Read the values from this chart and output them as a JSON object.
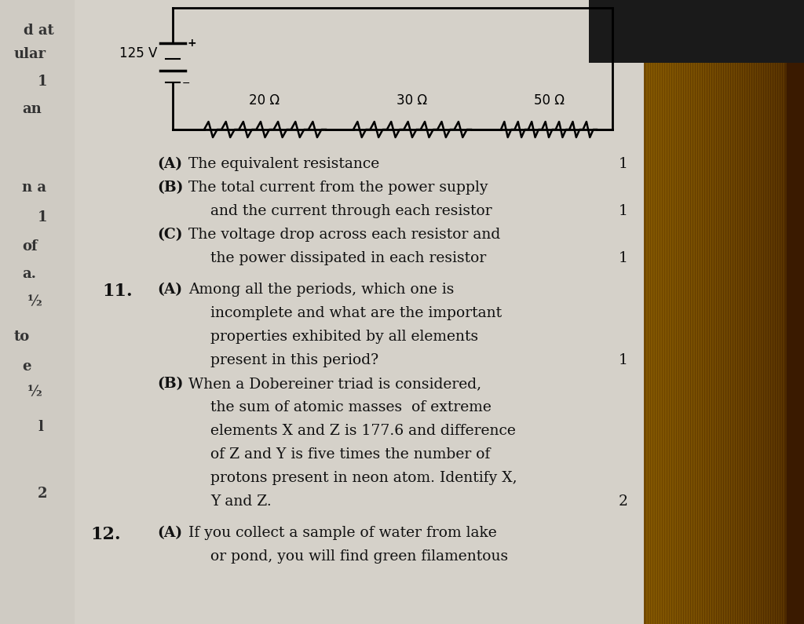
{
  "bg_page": "#d8d4cc",
  "bg_left_strip": "#c8c4bc",
  "text_color": "#111111",
  "circuit": {
    "voltage": "125 V",
    "resistors": [
      "20 Ω",
      "30 Ω",
      "50 Ω"
    ]
  },
  "lines_A": [
    {
      "prefix": "(A)",
      "text": "The equivalent resistance",
      "marks": "1",
      "indent": false
    },
    {
      "prefix": "(B)",
      "text": "The total current from the power supply",
      "marks": "",
      "indent": false
    },
    {
      "prefix": "",
      "text": "and the current through each resistor",
      "marks": "1",
      "indent": true
    },
    {
      "prefix": "(C)",
      "text": "The voltage drop across each resistor and",
      "marks": "",
      "indent": false
    },
    {
      "prefix": "",
      "text": "the power dissipated in each resistor",
      "marks": "1",
      "indent": true
    }
  ],
  "q11_label": "11.",
  "lines_11": [
    {
      "prefix": "(A)",
      "text": "Among all the periods, which one is",
      "marks": "",
      "indent": false
    },
    {
      "prefix": "",
      "text": "incomplete and what are the important",
      "marks": "",
      "indent": true
    },
    {
      "prefix": "",
      "text": "properties exhibited by all elements",
      "marks": "",
      "indent": true
    },
    {
      "prefix": "",
      "text": "present in this period?",
      "marks": "1",
      "indent": true
    },
    {
      "prefix": "(B)",
      "text": "When a Dobereiner triad is considered,",
      "marks": "",
      "indent": false
    },
    {
      "prefix": "",
      "text": "the sum of atomic masses  of extreme",
      "marks": "",
      "indent": true
    },
    {
      "prefix": "",
      "text": "elements X and Z is 177.6 and difference",
      "marks": "",
      "indent": true
    },
    {
      "prefix": "",
      "text": "of Z and Y is five times the number of",
      "marks": "",
      "indent": true
    },
    {
      "prefix": "",
      "text": "protons present in neon atom. Identify X,",
      "marks": "",
      "indent": true
    },
    {
      "prefix": "",
      "text": "Y and Z.",
      "marks": "2",
      "indent": true
    }
  ],
  "q12_label": "12.",
  "lines_12": [
    {
      "prefix": "(A)",
      "text": "If you collect a sample of water from lake",
      "marks": "",
      "indent": false
    },
    {
      "prefix": "",
      "text": "or pond, you will find green filamentous",
      "marks": "",
      "indent": true
    }
  ],
  "left_texts": [
    "d at",
    "ular",
    "1",
    "an",
    "",
    "n a",
    "1",
    "of",
    "a.",
    "½",
    "to",
    "e",
    "½"
  ],
  "font_size_body": 13.5,
  "font_size_q_num": 15
}
